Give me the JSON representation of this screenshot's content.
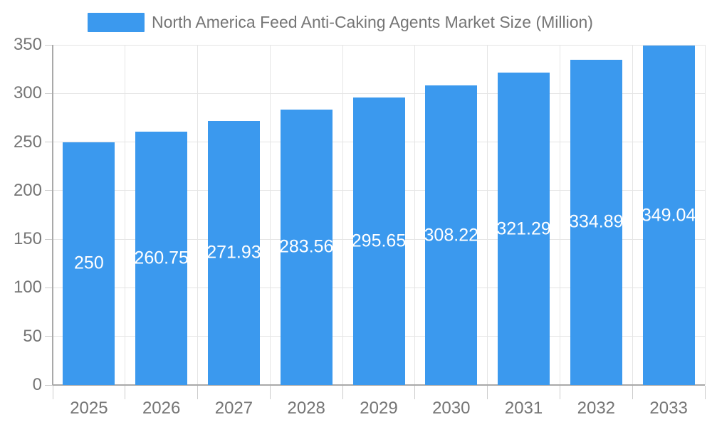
{
  "legend": {
    "label": "North America Feed Anti-Caking Agents Market Size (Million)"
  },
  "colors": {
    "bar": "#3b99ee",
    "grid": "#e5e5e5",
    "axis": "#a9a9a9",
    "tick": "#cccccc",
    "text": "#757575",
    "value_label": "#ffffff",
    "background": "#ffffff"
  },
  "chart_data": {
    "type": "bar",
    "title": "North America Feed Anti-Caking Agents Market Size (Million)",
    "categories": [
      "2025",
      "2026",
      "2027",
      "2028",
      "2029",
      "2030",
      "2031",
      "2032",
      "2033"
    ],
    "series": [
      {
        "name": "North America Feed Anti-Caking Agents Market Size (Million)",
        "values": [
          250,
          260.75,
          271.93,
          283.56,
          295.65,
          308.22,
          321.29,
          334.89,
          349.04
        ],
        "labels": [
          "250",
          "260.75",
          "271.93",
          "283.56",
          "295.65",
          "308.22",
          "321.29",
          "334.89",
          "349.04"
        ]
      }
    ],
    "xlabel": "",
    "ylabel": "",
    "ylim": [
      0,
      350
    ],
    "yticks": [
      0,
      50,
      100,
      150,
      200,
      250,
      300,
      350
    ],
    "grid": true,
    "legend_position": "top",
    "value_label_position": "inside-center"
  }
}
